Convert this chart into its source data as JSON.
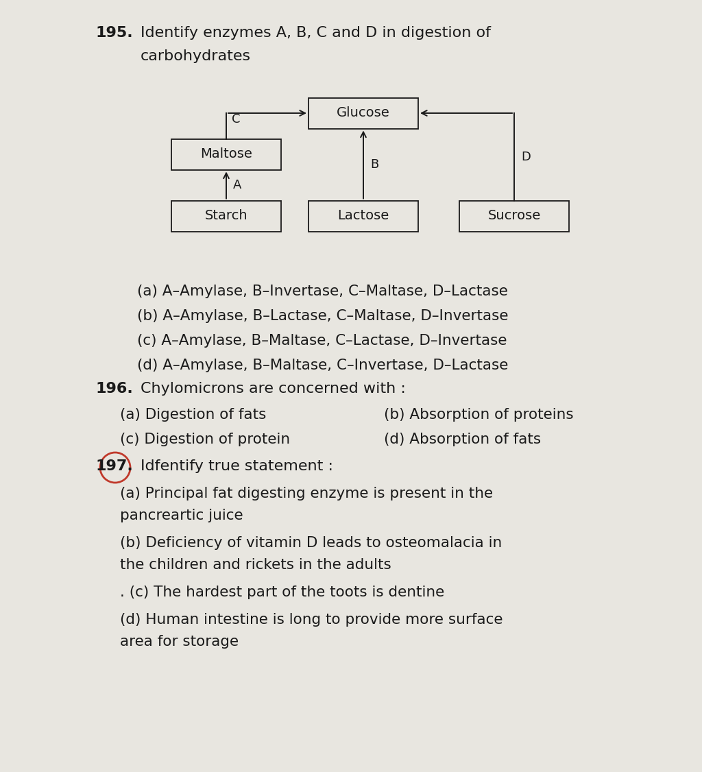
{
  "bg_color": "#e8e6e0",
  "text_color": "#1a1a1a",
  "q195_options": [
    "(a) A–Amylase, B–Invertase, C–Maltase, D–Lactase",
    "(b) A–Amylase, B–Lactase, C–Maltase, D–Invertase",
    "(c) A–Amylase, B–Maltase, C–Lactase, D–Invertase",
    "(d) A–Amylase, B–Maltase, C–Invertase, D–Lactase"
  ],
  "q196_options": [
    "(a) Digestion of fats",
    "(b) Absorption of proteins",
    "(c) Digestion of protein",
    "(d) Absorption of fats"
  ],
  "q197_options": [
    "(a) Principal fat digesting enzyme is present in the\n        pancreartic juice",
    "(b) Deficiency of vitamin D leads to osteomalacia in\n        the children and rickets in the adults",
    ". (c) The hardest part of the toots is dentine",
    "(d) Human intestine is long to provide more surface\n        area for storage"
  ],
  "diagram_bg": "#e8e6e0"
}
